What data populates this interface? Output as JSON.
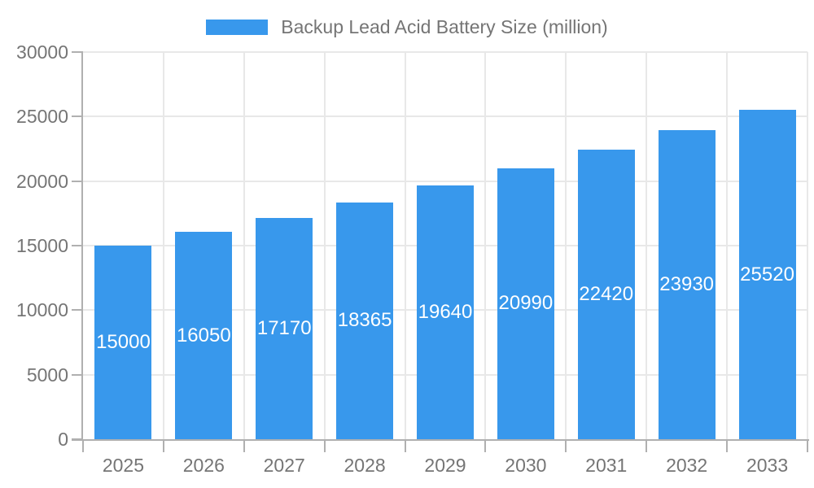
{
  "legend": {
    "label": "Backup Lead Acid Battery Size (million)"
  },
  "chart_data": {
    "type": "bar",
    "title": "Backup Lead Acid Battery Size (million)",
    "categories": [
      "2025",
      "2026",
      "2027",
      "2028",
      "2029",
      "2030",
      "2031",
      "2032",
      "2033"
    ],
    "values": [
      15000,
      16050,
      17170,
      18365,
      19640,
      20990,
      22420,
      23930,
      25520
    ],
    "xlabel": "",
    "ylabel": "",
    "ylim": [
      0,
      30000
    ],
    "ytick_interval": 5000,
    "yticks": [
      "0",
      "5000",
      "10000",
      "15000",
      "20000",
      "25000",
      "30000"
    ],
    "legend_position": "top-center",
    "grid": "on",
    "bar_color": "#3898EC",
    "value_label_color": "#FFFFFF",
    "axis_text_color": "#757575"
  }
}
